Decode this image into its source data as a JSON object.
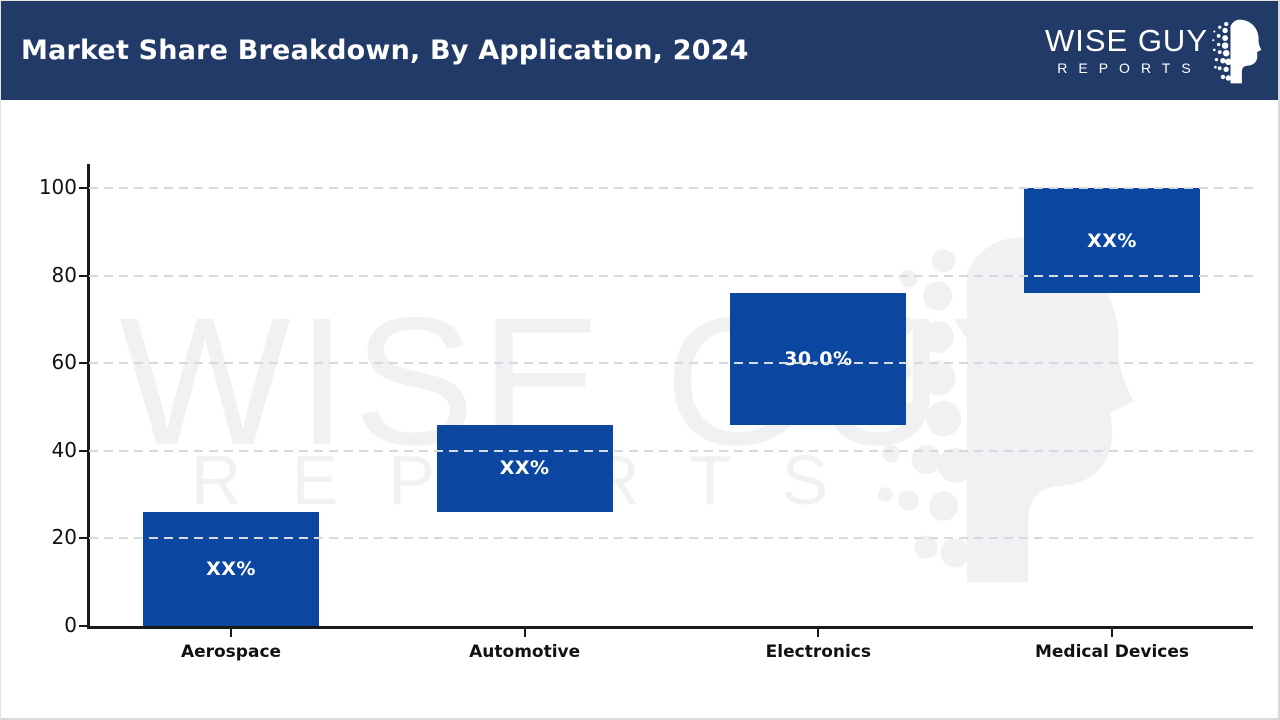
{
  "header": {
    "title": "Market Share Breakdown, By Application, 2024",
    "background_color": "#223A68",
    "logo": {
      "brand": "WISE GUY",
      "sub": "REPORTS"
    }
  },
  "watermark": {
    "brand": "WISE GUY",
    "sub": "REPORTS"
  },
  "chart_data": {
    "type": "bar",
    "subtype": "floating-segment-waterfall",
    "title": "Market Share Breakdown, By Application, 2024",
    "categories": [
      "Aerospace",
      "Automotive",
      "Electronics",
      "Medical Devices"
    ],
    "segments": [
      {
        "category": "Aerospace",
        "start": 0,
        "end": 26,
        "label": "XX%"
      },
      {
        "category": "Automotive",
        "start": 26,
        "end": 46,
        "label": "XX%"
      },
      {
        "category": "Electronics",
        "start": 46,
        "end": 76,
        "label": "30.0%"
      },
      {
        "category": "Medical Devices",
        "start": 76,
        "end": 100,
        "label": "XX%"
      }
    ],
    "xlabel": "",
    "ylabel": "",
    "yticks": [
      0,
      20,
      40,
      60,
      80,
      100
    ],
    "ylim": [
      0,
      105
    ],
    "grid": {
      "horizontal": true,
      "style": "dashed",
      "color": "#d6d9de"
    },
    "legend": null,
    "bar_color": "#0B46A0",
    "bar_label_color": "#ffffff",
    "axis_color": "#1a1a1a",
    "tick_label_color": "#111111"
  }
}
